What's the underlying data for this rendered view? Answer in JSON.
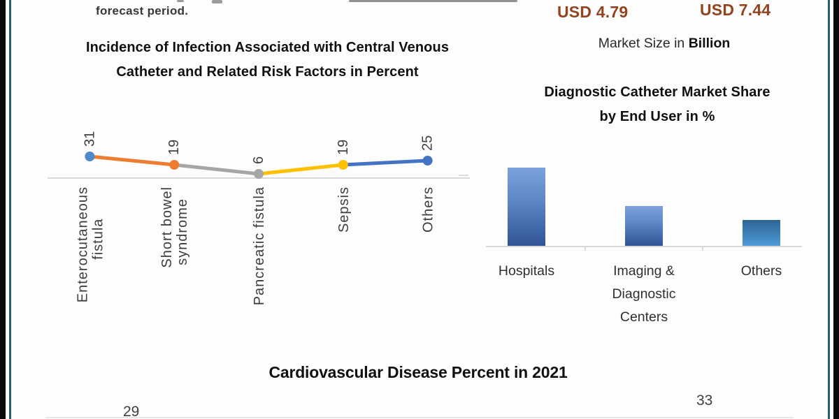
{
  "accents": {
    "usd_color": "#94431F",
    "frame_blue": "#2E5A78",
    "axis_color": "#D9D9D9",
    "label_color": "#404040"
  },
  "top": {
    "intro_text": "forecast period.",
    "market_size_start": "USD 4.79",
    "market_size_end": "USD 7.44",
    "market_size_caption": "Market Size in ",
    "market_size_caption_bold": "Billion"
  },
  "chart_data": [
    {
      "id": "infection-incidence-line",
      "type": "line",
      "title": "Incidence of Infection Associated with Central Venous Catheter and Related Risk Factors in Percent",
      "title_lines": [
        "Incidence of Infection Associated with Central Venous",
        "Catheter and Related Risk Factors in Percent"
      ],
      "categories": [
        "Enterocutaneous fistula",
        "Short bowel syndrome",
        "Pancreatic fistula",
        "Sepsis",
        "Others"
      ],
      "categories_lines": [
        [
          "Enterocutaneous",
          "fistula"
        ],
        [
          "Short bowel",
          "syndrome"
        ],
        [
          "Pancreatic fistula"
        ],
        [
          "Sepsis"
        ],
        [
          "Others"
        ]
      ],
      "values": [
        31,
        19,
        6,
        19,
        25
      ],
      "data_labels": [
        "31",
        "19",
        "6",
        "19",
        "25"
      ],
      "data_label_rotation_deg": -90,
      "ylim": [
        0,
        40
      ],
      "grid": false,
      "legend": "none",
      "axis_color": "#D9D9D9",
      "marker_colors": [
        "#5088CE",
        "#ED7D31",
        "#A6A6A6",
        "#FFC000",
        "#4472C4"
      ],
      "segment_colors": [
        "#ED7D31",
        "#A6A6A6",
        "#FFC000",
        "#4472C4"
      ]
    },
    {
      "id": "end-user-market-share-bar",
      "type": "bar",
      "title": "Diagnostic Catheter Market Share by End User in %",
      "title_lines": [
        "Diagnostic Catheter Market Share",
        "by End User in %"
      ],
      "categories": [
        "Hospitals",
        "Imaging & Diagnostic Centers",
        "Others"
      ],
      "categories_lines": [
        [
          "Hospitals"
        ],
        [
          "Imaging &",
          "Diagnostic",
          "Centers"
        ],
        [
          "Others"
        ]
      ],
      "values": [
        45,
        23,
        15
      ],
      "values_estimated": true,
      "values_note": "no data labels shown in chart; values estimated from relative bar heights",
      "grid": false,
      "legend": "none",
      "bar_gradient_top": "#7BA2DB",
      "bar_gradient_mid": "#5C85C5",
      "bar_gradient_bottom": "#2F5496",
      "bar_alt_gradient_top": "#2E6394",
      "bar_alt_gradient_bottom": "#4D9BD8"
    },
    {
      "id": "cardiovascular-2021",
      "type": "bar",
      "title": "Cardiovascular Disease Percent in 2021",
      "visible_data_labels": [
        "29",
        "33"
      ],
      "note": "chart body cropped by bottom edge of screenshot; only title and two data labels visible"
    }
  ]
}
